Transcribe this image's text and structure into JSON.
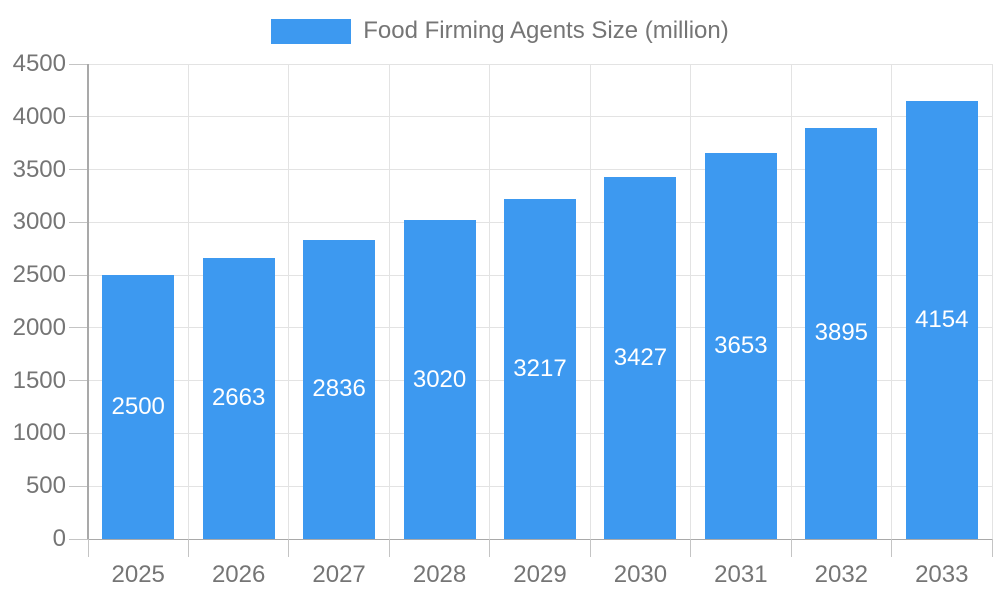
{
  "chart_data": {
    "type": "bar",
    "title": "Food Firming Agents Size (million)",
    "legend": {
      "label": "Food Firming Agents Size (million)",
      "position": "top-center"
    },
    "categories": [
      "2025",
      "2026",
      "2027",
      "2028",
      "2029",
      "2030",
      "2031",
      "2032",
      "2033"
    ],
    "values": [
      2500,
      2663,
      2836,
      3020,
      3217,
      3427,
      3653,
      3895,
      4154
    ],
    "xlabel": "",
    "ylabel": "",
    "ylim": [
      0,
      4500
    ],
    "yticks": [
      0,
      500,
      1000,
      1500,
      2000,
      2500,
      3000,
      3500,
      4000,
      4500
    ],
    "grid": true,
    "value_labels_position": "inside-middle",
    "colors": {
      "bar": "#3D99F0",
      "value_label": "#FFFFFF",
      "axis_text": "#757575",
      "gridline": "#E3E3E3",
      "axis_line": "#A9A9A9",
      "tick": "#C4C4C4",
      "background": "#FFFFFF"
    }
  }
}
